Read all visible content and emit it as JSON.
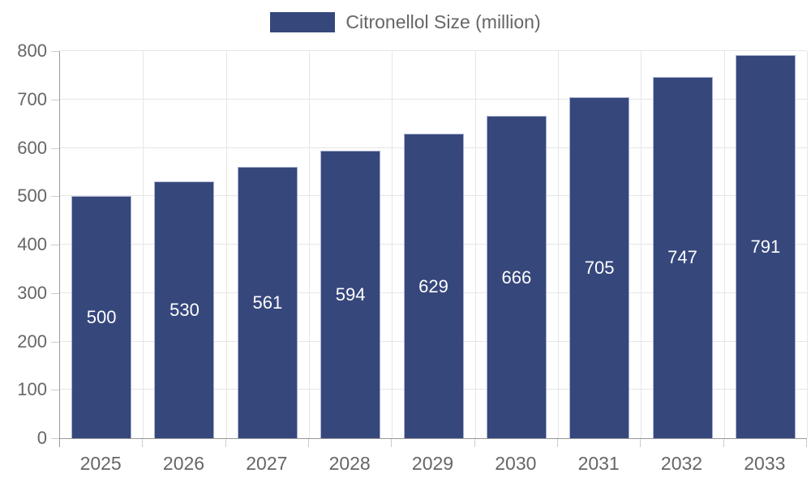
{
  "legend": {
    "label": "Citronellol Size (million)"
  },
  "chart_data": {
    "type": "bar",
    "title": "Citronellol Size (million)",
    "series_name": "Citronellol Size (million)",
    "categories": [
      "2025",
      "2026",
      "2027",
      "2028",
      "2029",
      "2030",
      "2031",
      "2032",
      "2033"
    ],
    "values": [
      500,
      530,
      561,
      594,
      629,
      666,
      705,
      747,
      791
    ],
    "xlabel": "",
    "ylabel": "",
    "ylim": [
      0,
      800
    ],
    "yticks": [
      0,
      100,
      200,
      300,
      400,
      500,
      600,
      700,
      800
    ],
    "grid": "on",
    "legend_position": "top",
    "bar_color": "#36477c",
    "bar_border_color": "rgba(190,198,225,0.85)",
    "value_label_color": "#ffffff",
    "axis_text_color": "#666666",
    "gridline_color": "#e6e6e6",
    "axis_line_color": "#999999"
  }
}
